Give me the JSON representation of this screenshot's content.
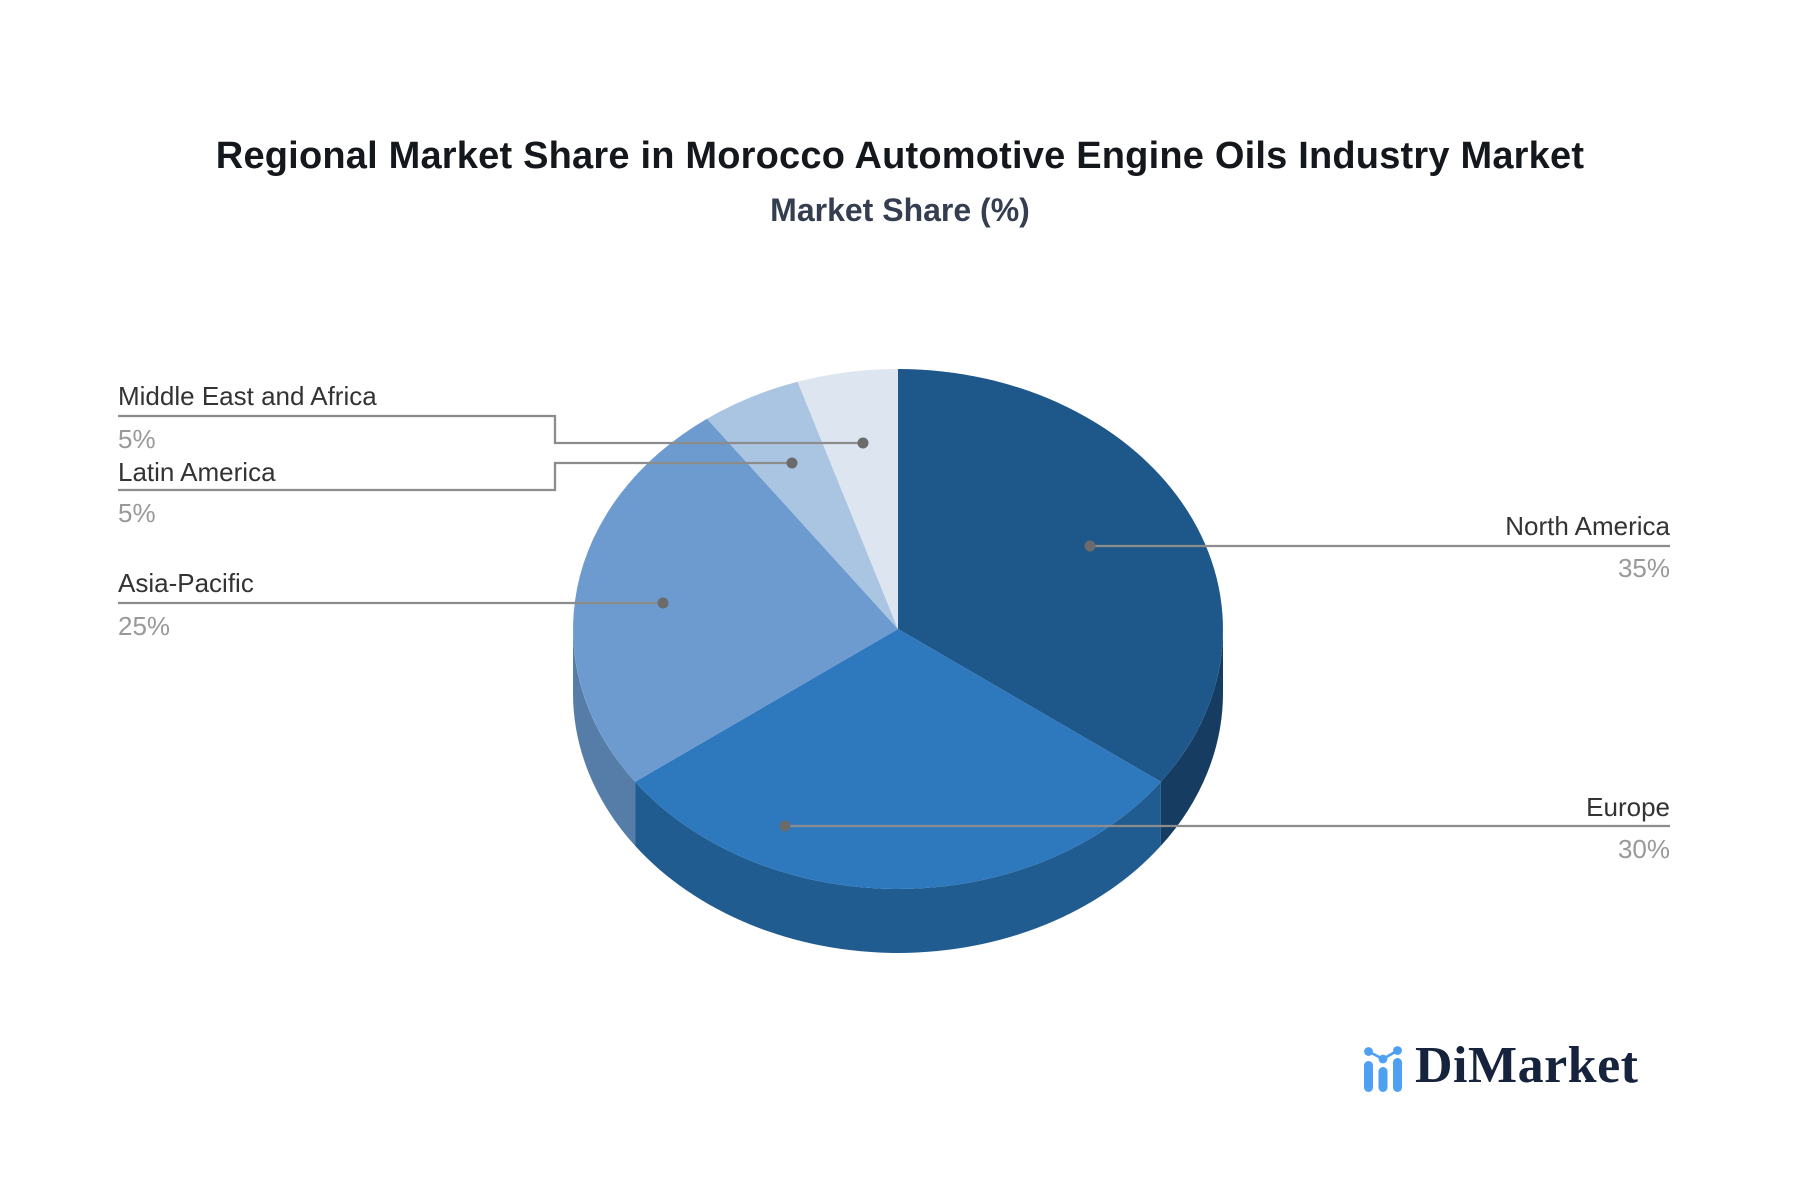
{
  "chart_data": {
    "type": "pie",
    "style": "3d-pie",
    "title": "Regional Market Share in Morocco Automotive Engine Oils Industry Market",
    "subtitle": "Market Share (%)",
    "start_angle": 90,
    "clockwise": true,
    "value_suffix": "%",
    "legend": "none (leader-line callout labels)",
    "slices": [
      {
        "label": "North America",
        "value": 35,
        "value_label": "35%",
        "color": "#1E578A",
        "rim": "#163D61"
      },
      {
        "label": "Europe",
        "value": 30,
        "value_label": "30%",
        "color": "#2E79BE",
        "rim": "#215C91"
      },
      {
        "label": "Asia-Pacific",
        "value": 25,
        "value_label": "25%",
        "color": "#6E9BCF",
        "rim": "#567DA8"
      },
      {
        "label": "Latin America",
        "value": 5,
        "value_label": "5%",
        "color": "#AAC5E2"
      },
      {
        "label": "Middle East and Africa",
        "value": 5,
        "value_label": "5%",
        "color": "#DDE5F0"
      }
    ]
  },
  "callout_style": {
    "line_color": "#8C8C8C",
    "dot_color": "#6B6B6B",
    "label_color": "#333333",
    "value_color": "#999999"
  },
  "branding": {
    "logo_text": "DiMarket",
    "logo_icon": "bar-line-chart-icon",
    "icon_color": "#4DA0F2",
    "text_color": "#16233C"
  }
}
